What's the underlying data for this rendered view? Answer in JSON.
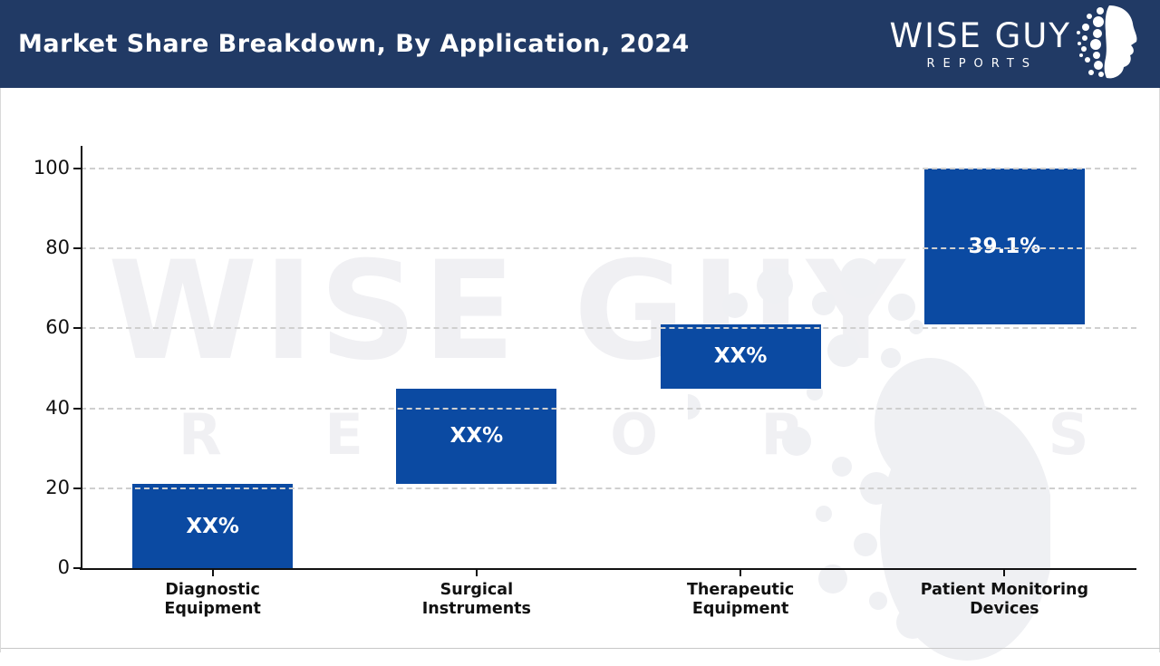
{
  "header": {
    "title": "Market Share Breakdown, By Application, 2024",
    "logo": {
      "wordmark": "WISE GUY",
      "subtext": "REPORTS"
    }
  },
  "watermark": {
    "wordmark": "WISE GUY",
    "subtext": "R E P O R T S"
  },
  "colors": {
    "header_navy": "#213a65",
    "bar_blue": "#0b4aa2",
    "gridline_gray": "#cfcfcf",
    "watermark_gray": "#f0f0f3"
  },
  "chart_data": {
    "type": "bar",
    "variant": "waterfall",
    "title": "Market Share Breakdown, By Application, 2024",
    "categories": [
      "Diagnostic Equipment",
      "Surgical Instruments",
      "Therapeutic Equipment",
      "Patient Monitoring Devices"
    ],
    "ylim": [
      0,
      100
    ],
    "yticks": [
      0,
      20,
      40,
      60,
      80,
      100
    ],
    "grid": "dashed-horizontal",
    "legend": "none",
    "bar_color": "#0b4aa2",
    "segments": [
      {
        "category": "Diagnostic Equipment",
        "label_lines": [
          "Diagnostic",
          "Equipment"
        ],
        "start": 0,
        "end": 21,
        "value_label": "XX%"
      },
      {
        "category": "Surgical Instruments",
        "label_lines": [
          "Surgical",
          "Instruments"
        ],
        "start": 21,
        "end": 45,
        "value_label": "XX%"
      },
      {
        "category": "Therapeutic Equipment",
        "label_lines": [
          "Therapeutic",
          "Equipment"
        ],
        "start": 45,
        "end": 61,
        "value_label": "XX%"
      },
      {
        "category": "Patient Monitoring Devices",
        "label_lines": [
          "Patient Monitoring",
          "Devices"
        ],
        "start": 61,
        "end": 100,
        "value_label": "39.1%"
      }
    ]
  }
}
